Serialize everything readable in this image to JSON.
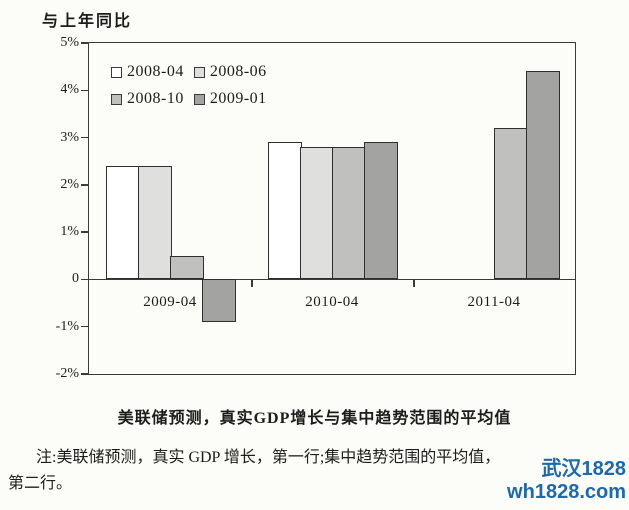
{
  "page_title": "与上年同比",
  "caption": "美联储预测，真实GDP增长与集中趋势范围的平均值",
  "note": {
    "line1": "注:美联储预测，真实 GDP 增长，第一行;集中趋势范围的平均值，",
    "line2": "第二行。"
  },
  "watermark": {
    "line1": "武汉1828",
    "line2": "wh1828.com",
    "color": "#1b69af"
  },
  "chart_data": {
    "type": "bar",
    "title": "与上年同比",
    "categories": [
      "2009-04",
      "2010-04",
      "2011-04"
    ],
    "series": [
      {
        "name": "2008-04",
        "color": "#ffffff",
        "values": [
          2.4,
          2.9,
          null
        ]
      },
      {
        "name": "2008-06",
        "color": "#dfdfdd",
        "values": [
          2.4,
          2.8,
          null
        ]
      },
      {
        "name": "2008-10",
        "color": "#c0c0be",
        "values": [
          0.5,
          2.8,
          3.2
        ]
      },
      {
        "name": "2009-01",
        "color": "#a3a3a1",
        "values": [
          -0.9,
          2.9,
          4.4
        ]
      }
    ],
    "ylim": [
      -2,
      5
    ],
    "y_ticks": [
      {
        "value": 5,
        "label": "5%"
      },
      {
        "value": 4,
        "label": "4%"
      },
      {
        "value": 3,
        "label": "3%"
      },
      {
        "value": 2,
        "label": "2%"
      },
      {
        "value": 1,
        "label": "1%"
      },
      {
        "value": 0,
        "label": "0"
      },
      {
        "value": -1,
        "label": "-1%"
      },
      {
        "value": -2,
        "label": "-2%"
      }
    ],
    "grid": false,
    "legend_position": "top-left-inside",
    "bar_border_color": "#2f2f2f",
    "axis_color": "#3a3a3a"
  }
}
